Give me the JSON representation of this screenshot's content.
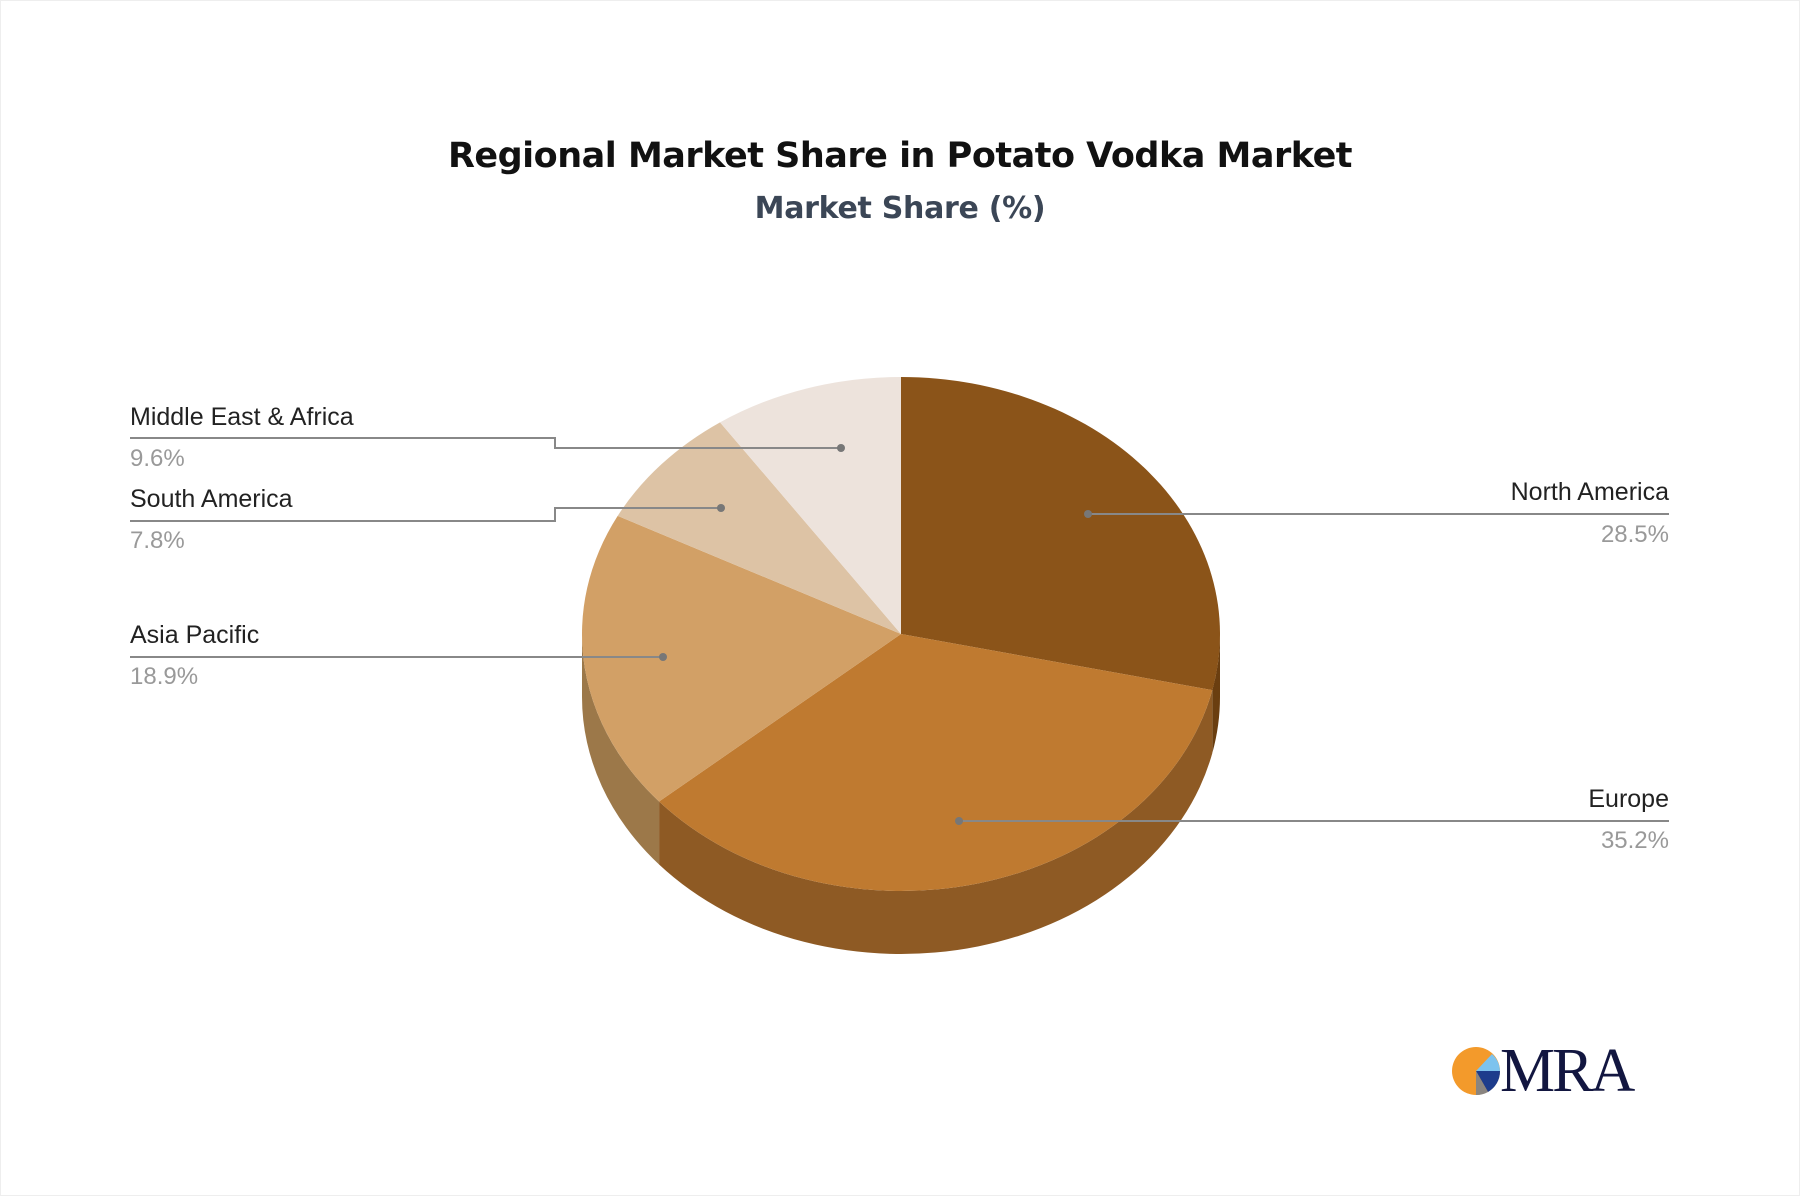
{
  "chart_data": {
    "type": "pie",
    "style": "3d",
    "title": "Regional Market Share in Potato Vodka Market",
    "subtitle": "Market Share (%)",
    "slices": [
      {
        "label": "North America",
        "value": 28.5,
        "display": "28.5%",
        "color": "#8B5419",
        "side_color": "#6A3E10"
      },
      {
        "label": "Europe",
        "value": 35.2,
        "display": "35.2%",
        "color": "#BF7A30",
        "side_color": "#8E5A24"
      },
      {
        "label": "Asia Pacific",
        "value": 18.9,
        "display": "18.9%",
        "color": "#D2A066",
        "side_color": "#9C7849"
      },
      {
        "label": "South America",
        "value": 7.8,
        "display": "7.8%",
        "color": "#DDC3A5",
        "side_color": "#A8927A"
      },
      {
        "label": "Middle East & Africa",
        "value": 9.6,
        "display": "9.6%",
        "color": "#EDE3DC",
        "side_color": "#B5ABA4"
      }
    ]
  },
  "logo": {
    "text": "MRA"
  }
}
